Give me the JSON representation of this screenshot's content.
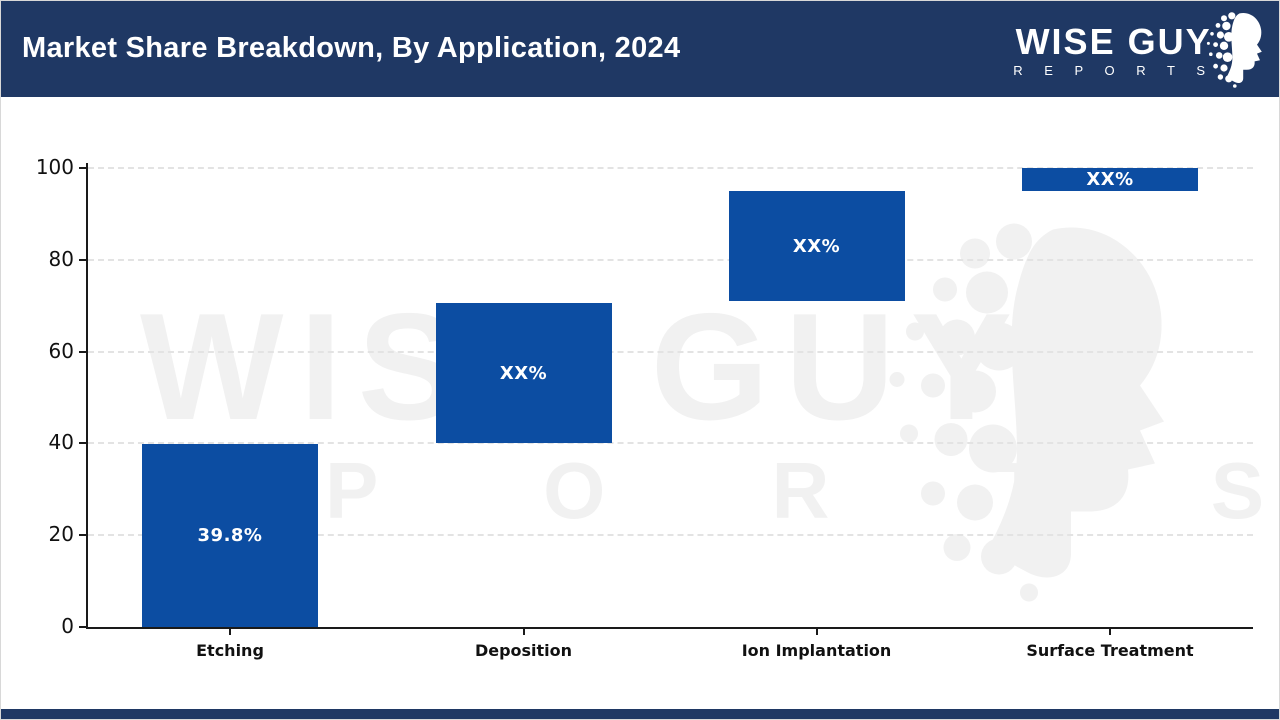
{
  "colors": {
    "header_bg": "#1f3864",
    "footer_bg": "#1f3864",
    "bar": "#0c4da2",
    "bar_label": "#ffffff",
    "axis": "#1a1a1a",
    "gridline": "#e3e3e3",
    "watermark": "#f1f1f1"
  },
  "header": {
    "title": "Market Share Breakdown, By Application, 2024",
    "logo": {
      "line1": "WISE GUY",
      "line2": "R E P O R T S"
    }
  },
  "watermark": {
    "line1": "WISE GUY",
    "line2": "P O R T S"
  },
  "chart_data": {
    "type": "bar",
    "subtype": "stacked-waterfall-percent",
    "title": "Market Share Breakdown, By Application, 2024",
    "categories": [
      "Etching",
      "Deposition",
      "Ion Implantation",
      "Surface Treatment"
    ],
    "bars": [
      {
        "category": "Etching",
        "start": 0,
        "end": 39.8,
        "label": "39.8%"
      },
      {
        "category": "Deposition",
        "start": 40,
        "end": 70.6,
        "label": "XX%"
      },
      {
        "category": "Ion Implantation",
        "start": 71,
        "end": 95,
        "label": "XX%"
      },
      {
        "category": "Surface Treatment",
        "start": 95,
        "end": 100,
        "label": "XX%"
      }
    ],
    "xlabel": "",
    "ylabel": "",
    "ylim": [
      0,
      100
    ],
    "yticks": [
      "0",
      "20",
      "40",
      "60",
      "80",
      "100"
    ],
    "grid": "horizontal-dashed",
    "legend": "none"
  }
}
